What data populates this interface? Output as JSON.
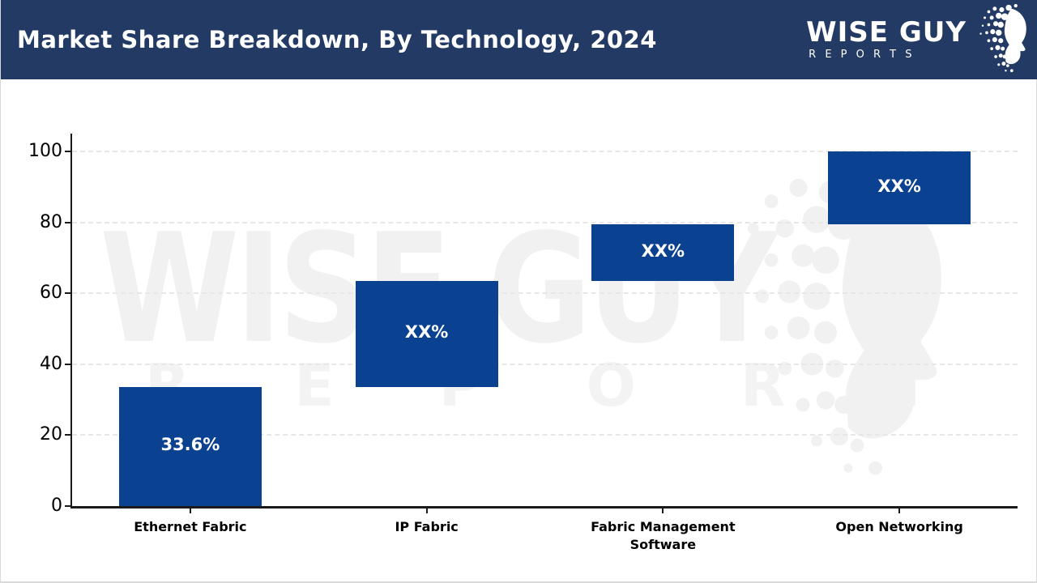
{
  "header": {
    "title": "Market Share Breakdown, By Technology, 2024",
    "logo": {
      "line1": "WISE GUY",
      "line2": "R E P O R T S"
    }
  },
  "watermark": {
    "line1": "WISE GUY",
    "line2": "R E P O R T S"
  },
  "colors": {
    "header_bg": "#223a64",
    "page_border": "#d9d9d9",
    "grid": "#e7e7e7",
    "axis": "#1a1a1a",
    "tick_text": "#000000",
    "watermark": "#f1f1f1"
  },
  "chart_data": {
    "type": "bar",
    "subtype": "waterfall",
    "title": "Market Share Breakdown, By Technology, 2024",
    "categories": [
      "Ethernet Fabric",
      "IP Fabric",
      "Fabric Management\nSoftware",
      "Open Networking"
    ],
    "segments": [
      {
        "category": "Ethernet Fabric",
        "start": 0,
        "end": 33.6,
        "label": "33.6%"
      },
      {
        "category": "IP Fabric",
        "start": 33.6,
        "end": 63.5,
        "label": "XX%"
      },
      {
        "category": "Fabric Management\nSoftware",
        "start": 63.5,
        "end": 79.5,
        "label": "XX%"
      },
      {
        "category": "Open Networking",
        "start": 79.5,
        "end": 100,
        "label": "XX%"
      }
    ],
    "ylim": [
      0,
      100
    ],
    "yticks": [
      0,
      20,
      40,
      60,
      80,
      100
    ],
    "xlabel": "",
    "ylabel": "",
    "grid": "horizontal-dashed",
    "legend": "none",
    "bar_color": "#0a4190",
    "label_color": "#ffffff"
  }
}
